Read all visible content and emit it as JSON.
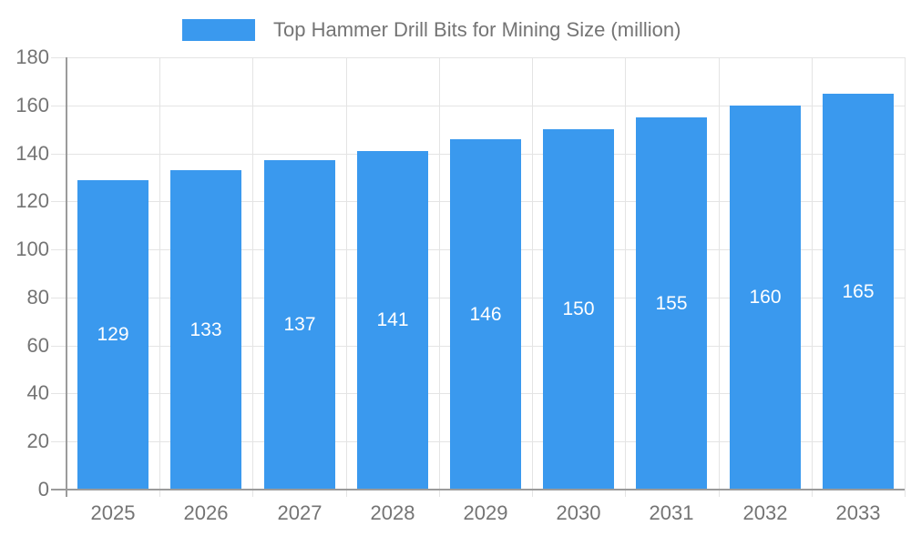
{
  "legend": {
    "label": "Top Hammer Drill Bits for Mining Size (million)"
  },
  "chart_data": {
    "type": "bar",
    "title": "Top Hammer Drill Bits for Mining Size (million)",
    "series_name": "Top Hammer Drill Bits for Mining Size (million)",
    "categories": [
      "2025",
      "2026",
      "2027",
      "2028",
      "2029",
      "2030",
      "2031",
      "2032",
      "2033"
    ],
    "values": [
      129,
      133,
      137,
      141,
      146,
      150,
      155,
      160,
      165
    ],
    "value_labels": [
      "129",
      "133",
      "137",
      "141",
      "146",
      "150",
      "155",
      "160",
      "165"
    ],
    "xlabel": "",
    "ylabel": "",
    "ylim": [
      0,
      180
    ],
    "ytick_step": 20,
    "ytick_labels": [
      "0",
      "20",
      "40",
      "60",
      "80",
      "100",
      "120",
      "140",
      "160",
      "180"
    ],
    "grid": "both",
    "legend_position": "top",
    "colors": {
      "bar": "#3a99ee",
      "grid": "#e4e4e4",
      "axis": "#9b9b9b",
      "text": "#747474",
      "value_label": "#ffffff",
      "background": "#ffffff"
    }
  }
}
